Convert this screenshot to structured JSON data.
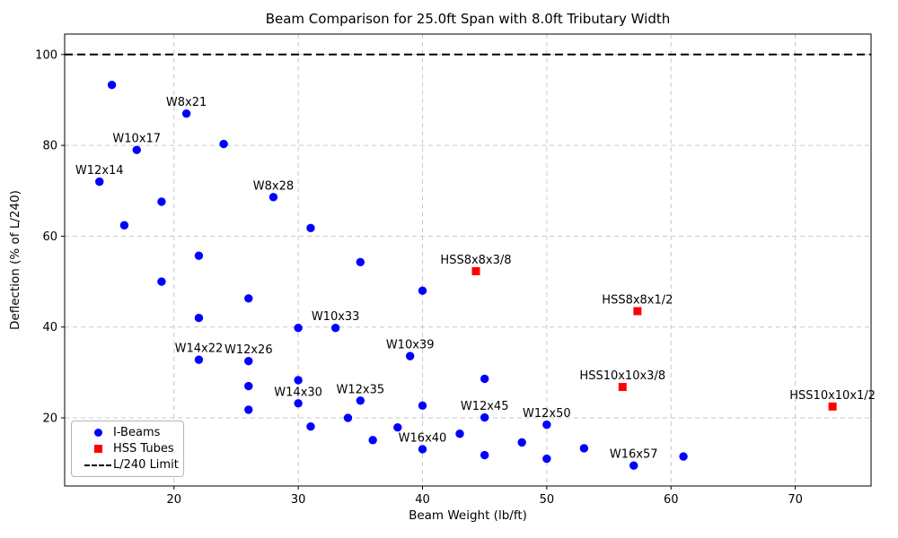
{
  "chart_data": {
    "type": "scatter",
    "title": "Beam Comparison for 25.0ft Span with 8.0ft Tributary Width",
    "xlabel": "Beam Weight (lb/ft)",
    "ylabel": "Deflection (% of L/240)",
    "xlim": [
      11.2,
      76.1
    ],
    "ylim": [
      5.0,
      104.5
    ],
    "xticks": [
      20,
      30,
      40,
      50,
      60,
      70
    ],
    "yticks": [
      20,
      40,
      60,
      80,
      100
    ],
    "grid": true,
    "grid_color": "#c8c8c8",
    "legend_position": "lower-left",
    "limit_line": {
      "y": 100,
      "label": "L/240 Limit",
      "color": "#000000",
      "style": "dashed"
    },
    "series": [
      {
        "name": "I-Beams",
        "marker": "circle",
        "color": "#0000ff",
        "points": [
          {
            "x": 15,
            "y": 93.3
          },
          {
            "x": 21,
            "y": 87.0,
            "label": "W8x21"
          },
          {
            "x": 24,
            "y": 80.3
          },
          {
            "x": 17,
            "y": 79.0,
            "label": "W10x17"
          },
          {
            "x": 14,
            "y": 72.0,
            "label": "W12x14"
          },
          {
            "x": 28,
            "y": 68.6,
            "label": "W8x28"
          },
          {
            "x": 19,
            "y": 67.6
          },
          {
            "x": 16,
            "y": 62.4
          },
          {
            "x": 31,
            "y": 61.8
          },
          {
            "x": 22,
            "y": 55.7
          },
          {
            "x": 35,
            "y": 54.3
          },
          {
            "x": 19,
            "y": 50.0
          },
          {
            "x": 40,
            "y": 48.0
          },
          {
            "x": 26,
            "y": 46.3
          },
          {
            "x": 22,
            "y": 42.0
          },
          {
            "x": 30,
            "y": 39.8
          },
          {
            "x": 33,
            "y": 39.8,
            "label": "W10x33"
          },
          {
            "x": 39,
            "y": 33.6,
            "label": "W10x39"
          },
          {
            "x": 22,
            "y": 32.8,
            "label": "W14x22"
          },
          {
            "x": 26,
            "y": 32.5,
            "label": "W12x26"
          },
          {
            "x": 45,
            "y": 28.6
          },
          {
            "x": 30,
            "y": 28.3
          },
          {
            "x": 26,
            "y": 27.0
          },
          {
            "x": 35,
            "y": 23.8,
            "label": "W12x35"
          },
          {
            "x": 30,
            "y": 23.2,
            "label": "W14x30"
          },
          {
            "x": 40,
            "y": 22.7
          },
          {
            "x": 26,
            "y": 21.8
          },
          {
            "x": 45,
            "y": 20.1,
            "label": "W12x45"
          },
          {
            "x": 34,
            "y": 20.0
          },
          {
            "x": 50,
            "y": 18.5,
            "label": "W12x50"
          },
          {
            "x": 31,
            "y": 18.1
          },
          {
            "x": 38,
            "y": 17.9
          },
          {
            "x": 43,
            "y": 16.5
          },
          {
            "x": 36,
            "y": 15.1
          },
          {
            "x": 48,
            "y": 14.6
          },
          {
            "x": 53,
            "y": 13.3
          },
          {
            "x": 40,
            "y": 13.1,
            "label": "W16x40"
          },
          {
            "x": 45,
            "y": 11.8
          },
          {
            "x": 61,
            "y": 11.5
          },
          {
            "x": 50,
            "y": 11.0
          },
          {
            "x": 57,
            "y": 9.5,
            "label": "W16x57"
          }
        ]
      },
      {
        "name": "HSS Tubes",
        "marker": "square",
        "color": "#ff0000",
        "points": [
          {
            "x": 44.3,
            "y": 52.3,
            "label": "HSS8x8x3/8"
          },
          {
            "x": 57.3,
            "y": 43.5,
            "label": "HSS8x8x1/2"
          },
          {
            "x": 56.1,
            "y": 26.8,
            "label": "HSS10x10x3/8"
          },
          {
            "x": 73.0,
            "y": 22.5,
            "label": "HSS10x10x1/2"
          }
        ]
      }
    ]
  }
}
